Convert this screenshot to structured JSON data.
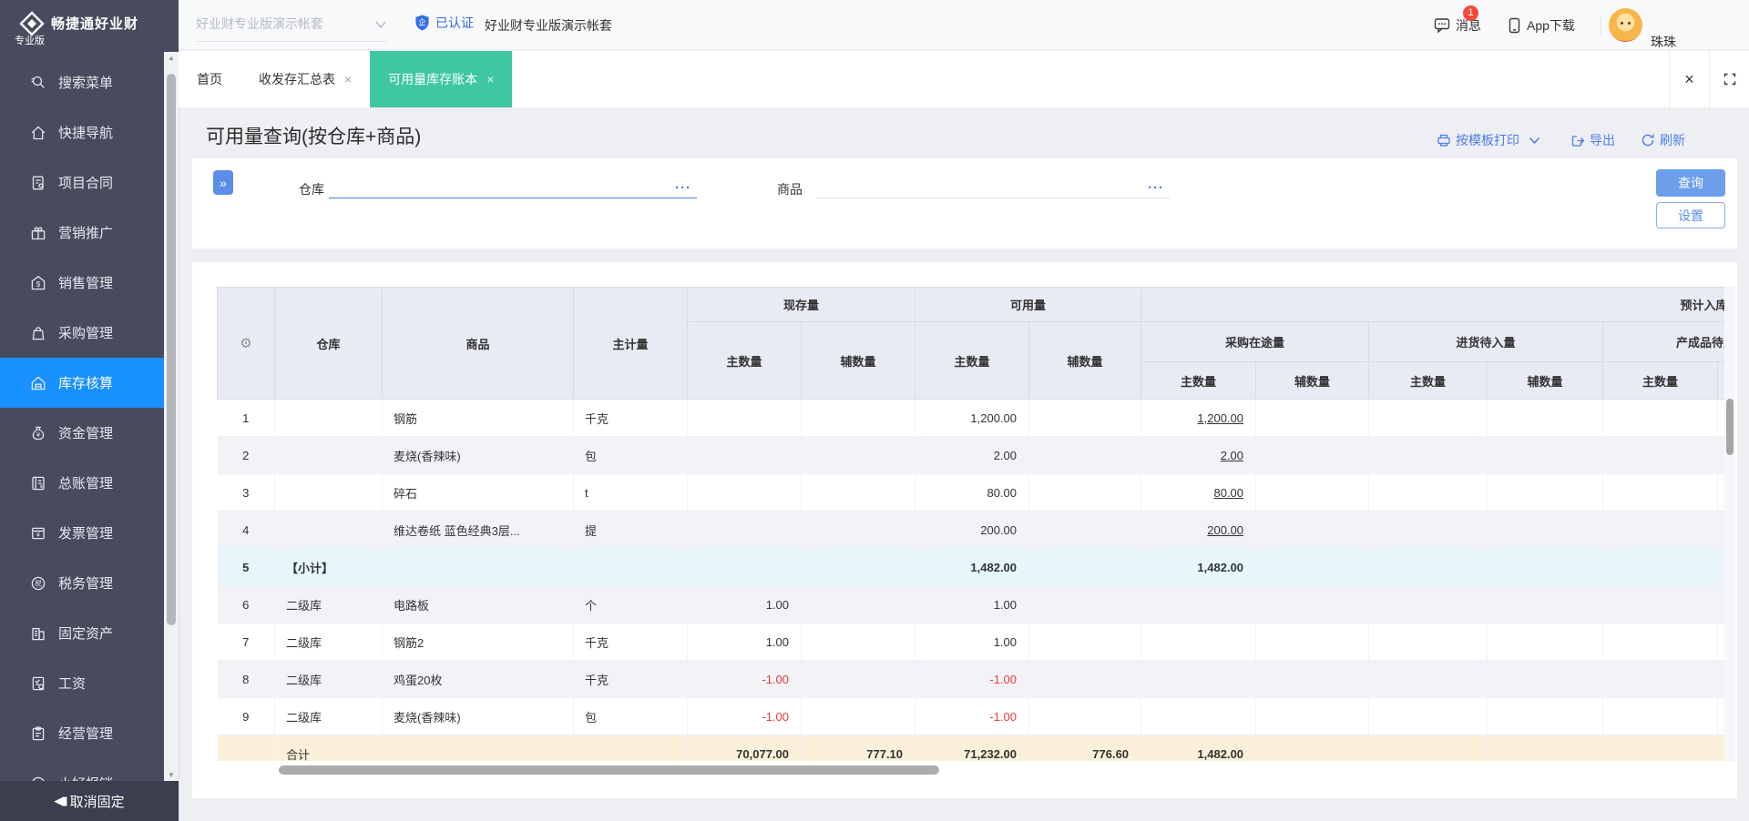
{
  "logo": {
    "brand": "畅捷通好业财",
    "edition": "专业版"
  },
  "topbar": {
    "account_selector": "好业财专业版演示帐套",
    "verified_badge": "已认证",
    "account_name": "好业财专业版演示帐套",
    "messages_label": "消息",
    "messages_badge": "1",
    "app_download_label": "App下载",
    "user_name": "珠珠"
  },
  "sidebar": {
    "unpin_label": "取消固定",
    "items": [
      {
        "id": "search-menu",
        "icon": "search",
        "label": "搜索菜单",
        "active": false
      },
      {
        "id": "quick-nav",
        "icon": "home",
        "label": "快捷导航",
        "active": false
      },
      {
        "id": "project-contract",
        "icon": "contract",
        "label": "项目合同",
        "active": false
      },
      {
        "id": "marketing",
        "icon": "gift",
        "label": "营销推广",
        "active": false
      },
      {
        "id": "sales-mgmt",
        "icon": "sales",
        "label": "销售管理",
        "active": false
      },
      {
        "id": "purchase-mgmt",
        "icon": "purchase",
        "label": "采购管理",
        "active": false
      },
      {
        "id": "inventory-acct",
        "icon": "inventory",
        "label": "库存核算",
        "active": true
      },
      {
        "id": "funds-mgmt",
        "icon": "funds",
        "label": "资金管理",
        "active": false
      },
      {
        "id": "general-ledger",
        "icon": "ledger",
        "label": "总账管理",
        "active": false
      },
      {
        "id": "invoice-mgmt",
        "icon": "invoice",
        "label": "发票管理",
        "active": false
      },
      {
        "id": "tax-mgmt",
        "icon": "tax",
        "label": "税务管理",
        "active": false
      },
      {
        "id": "fixed-assets",
        "icon": "asset",
        "label": "固定资产",
        "active": false
      },
      {
        "id": "payroll",
        "icon": "payroll",
        "label": "工资",
        "active": false
      },
      {
        "id": "operations-mgmt",
        "icon": "operations",
        "label": "经营管理",
        "active": false
      },
      {
        "id": "expense",
        "icon": "expense",
        "label": "小好报销",
        "active": false
      }
    ]
  },
  "tabs": {
    "close_glyph": "×",
    "items": [
      {
        "id": "home",
        "label": "首页",
        "closable": false,
        "active": false
      },
      {
        "id": "inout-summary",
        "label": "收发存汇总表",
        "closable": true,
        "active": false
      },
      {
        "id": "available-ledger",
        "label": "可用量库存账本",
        "closable": true,
        "active": true
      }
    ]
  },
  "window_controls": {
    "close": "×"
  },
  "page": {
    "title": "可用量查询(按仓库+商品)",
    "toolbar": {
      "print": "按模板打印",
      "export": "导出",
      "refresh": "刷新"
    },
    "filters": {
      "warehouse_label": "仓库",
      "product_label": "商品",
      "more_dots": "···",
      "expand_glyph": "»"
    },
    "buttons": {
      "query": "查询",
      "settings": "设置"
    }
  },
  "table": {
    "header": {
      "warehouse": "仓库",
      "product": "商品",
      "unit": "主计量",
      "qoh": "现存量",
      "available": "可用量",
      "expected_in": "预计入库量",
      "purchase_transit": "采购在途量",
      "incoming_pending": "进货待入量",
      "finished_pending": "产成品待入库量",
      "main_qty": "主数量",
      "aux_qty": "辅数量"
    },
    "rows": [
      {
        "num": "1",
        "cls": "odd",
        "warehouse": "",
        "product": "钢筋",
        "unit": "千克",
        "values": [
          "",
          "",
          "1,200.00",
          "",
          "1,200.00",
          "",
          "",
          "",
          ""
        ],
        "link_cols": [
          4
        ]
      },
      {
        "num": "2",
        "cls": "even",
        "warehouse": "",
        "product": "麦烧(香辣味)",
        "unit": "包",
        "values": [
          "",
          "",
          "2.00",
          "",
          "2.00",
          "",
          "",
          "",
          ""
        ],
        "link_cols": [
          4
        ]
      },
      {
        "num": "3",
        "cls": "odd",
        "warehouse": "",
        "product": "碎石",
        "unit": "t",
        "values": [
          "",
          "",
          "80.00",
          "",
          "80.00",
          "",
          "",
          "",
          ""
        ],
        "link_cols": [
          4
        ]
      },
      {
        "num": "4",
        "cls": "even",
        "warehouse": "",
        "product": "维达卷纸 蓝色经典3层...",
        "unit": "提",
        "values": [
          "",
          "",
          "200.00",
          "",
          "200.00",
          "",
          "",
          "",
          ""
        ],
        "link_cols": [
          4
        ]
      },
      {
        "num": "5",
        "cls": "subtotal",
        "warehouse": "【小计】",
        "product": "",
        "unit": "",
        "values": [
          "",
          "",
          "1,482.00",
          "",
          "1,482.00",
          "",
          "",
          "",
          ""
        ],
        "link_cols": []
      },
      {
        "num": "6",
        "cls": "even",
        "warehouse": "二级库",
        "product": "电路板",
        "unit": "个",
        "values": [
          "1.00",
          "",
          "1.00",
          "",
          "",
          "",
          "",
          "",
          ""
        ],
        "link_cols": []
      },
      {
        "num": "7",
        "cls": "odd",
        "warehouse": "二级库",
        "product": "钢筋2",
        "unit": "千克",
        "values": [
          "1.00",
          "",
          "1.00",
          "",
          "",
          "",
          "",
          "",
          ""
        ],
        "link_cols": []
      },
      {
        "num": "8",
        "cls": "even",
        "warehouse": "二级库",
        "product": "鸡蛋20枚",
        "unit": "千克",
        "values": [
          "-1.00",
          "",
          "-1.00",
          "",
          "",
          "",
          "",
          "",
          ""
        ],
        "link_cols": []
      },
      {
        "num": "9",
        "cls": "odd",
        "warehouse": "二级库",
        "product": "麦烧(香辣味)",
        "unit": "包",
        "values": [
          "-1.00",
          "",
          "-1.00",
          "",
          "",
          "",
          "",
          "",
          ""
        ],
        "link_cols": []
      }
    ],
    "total_row": {
      "num": "",
      "cls": "total",
      "warehouse": "合计",
      "product": "",
      "unit": "",
      "values": [
        "70,077.00",
        "777.10",
        "71,232.00",
        "776.60",
        "1,482.00",
        "",
        "",
        "",
        ""
      ],
      "link_cols": []
    }
  },
  "colors": {
    "sidebar_bg": "#474b5d",
    "active_item": "#1890ff",
    "active_tab": "#3fc7a1",
    "action_blue": "#4e7ce8",
    "negative_red": "#e63c3c",
    "subtotal_bg": "#e6f6fb",
    "total_bg": "#faf0da",
    "header_bg": "#e9ebf4"
  }
}
